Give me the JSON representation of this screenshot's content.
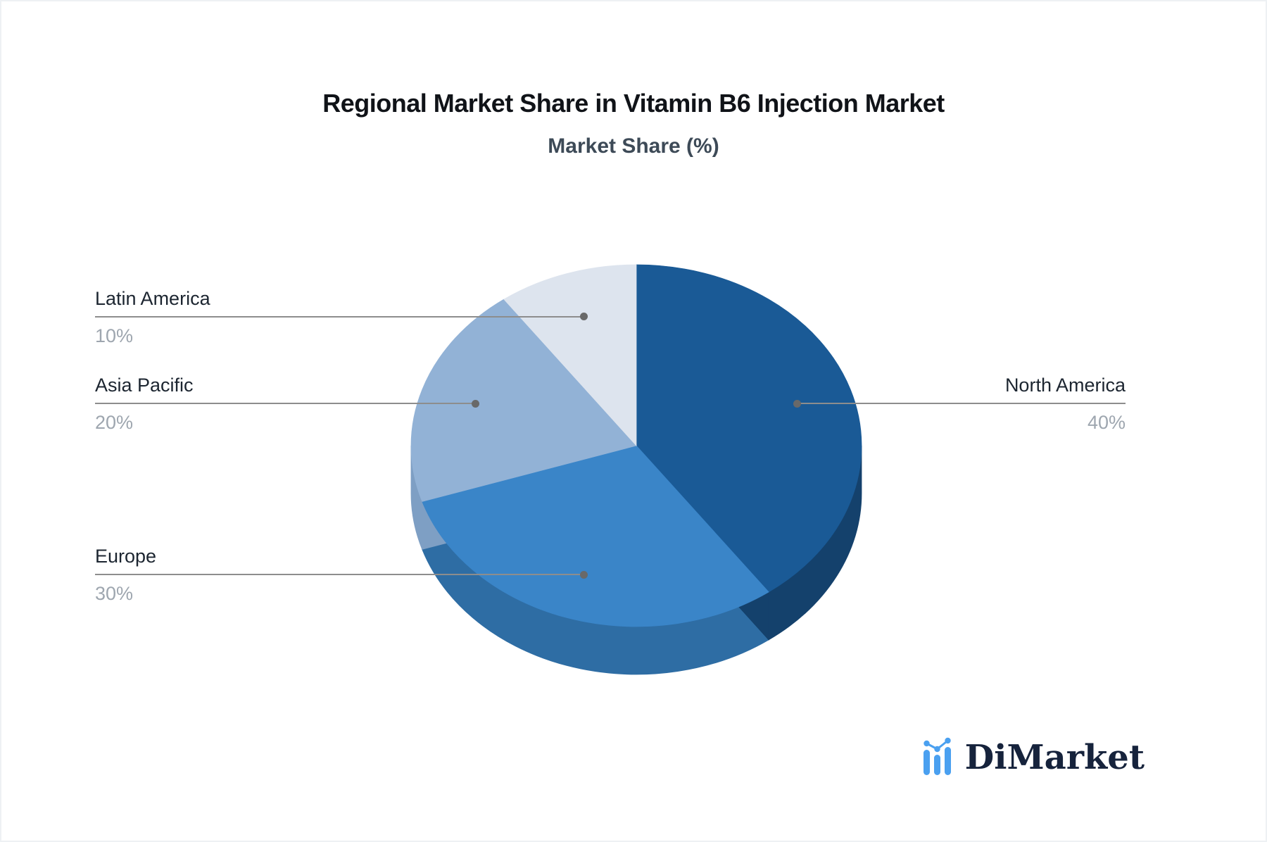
{
  "page": {
    "title": "Regional Market Share in Vitamin B6 Injection Market",
    "subtitle": "Market Share (%)"
  },
  "brand": {
    "name": "DiMarket",
    "icon": "bar-line-chart-icon",
    "icon_color": "#4aa0f0",
    "text_color": "#16233c"
  },
  "chart_data": {
    "type": "pie",
    "style": "3d-pie",
    "title": "Regional Market Share in Vitamin B6 Injection Market",
    "subtitle": "Market Share (%)",
    "unit": "%",
    "start_angle": "12-o-clock",
    "direction": "clockwise",
    "labels": [
      "North America",
      "Europe",
      "Asia Pacific",
      "Latin America"
    ],
    "values": [
      40,
      30,
      20,
      10
    ],
    "display_values": [
      "40%",
      "30%",
      "20%",
      "10%"
    ],
    "colors": {
      "top": [
        "#1A5A96",
        "#3A85C8",
        "#92B2D6",
        "#DDE4EE"
      ],
      "side": [
        "#14416C",
        "#2E6DA4",
        "#7E9FC4",
        "#C5CEDD"
      ]
    },
    "leader_line_color": "#8d8d8d",
    "leader_dot_color": "#696969",
    "legend_position": "callout-labels"
  }
}
